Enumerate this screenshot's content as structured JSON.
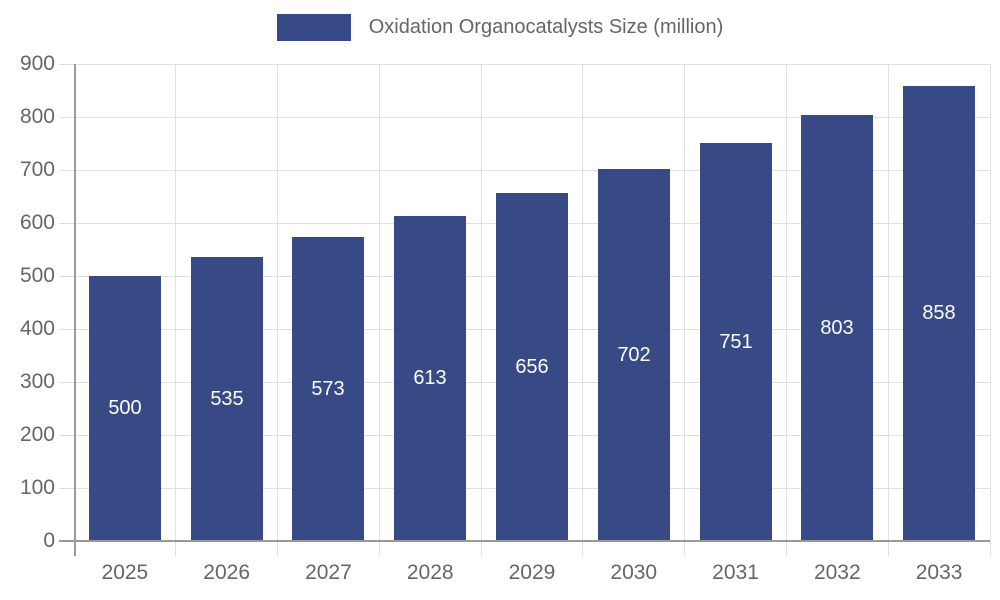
{
  "chart_data": {
    "type": "bar",
    "title": "Oxidation Organocatalysts Size (million)",
    "categories": [
      "2025",
      "2026",
      "2027",
      "2028",
      "2029",
      "2030",
      "2031",
      "2032",
      "2033"
    ],
    "values": [
      500,
      535,
      573,
      613,
      656,
      702,
      751,
      803,
      858
    ],
    "xlabel": "",
    "ylabel": "",
    "ylim": [
      0,
      900
    ],
    "ytick_step": 100,
    "grid": true,
    "legend_position": "top-center",
    "bar_labels_inside": true,
    "colors": {
      "bar": "#374a85",
      "axis": "#999999",
      "gridline": "#e0e0e0",
      "tick_label": "#666666",
      "bar_label": "#ffffff",
      "background": "#ffffff"
    }
  }
}
